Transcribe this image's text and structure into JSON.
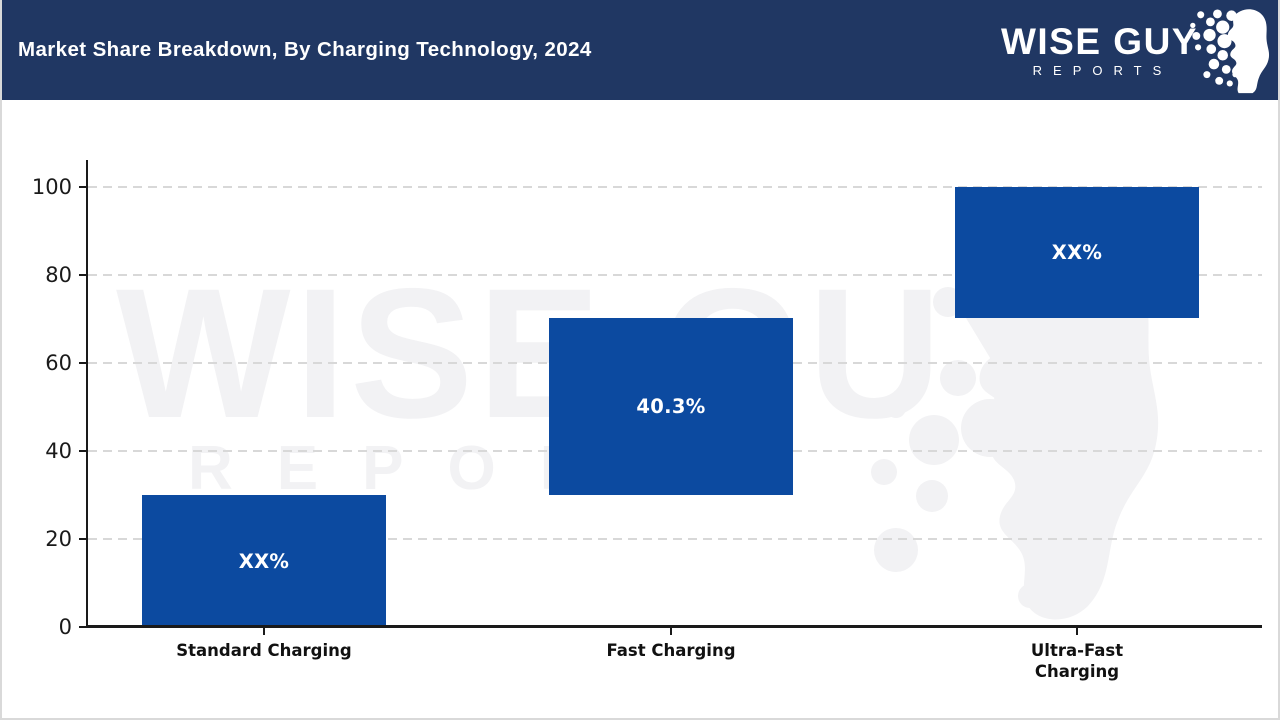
{
  "header": {
    "title": "Market Share Breakdown, By Charging Technology, 2024",
    "logo": {
      "line1": "WISE GUY",
      "line2": "REPORTS"
    }
  },
  "watermark": {
    "line1": "WISE GUY",
    "line2": "REPORTS"
  },
  "chart_data": {
    "type": "bar",
    "subtype": "waterfall",
    "title": "Market Share Breakdown, By Charging Technology, 2024",
    "categories": [
      "Standard Charging",
      "Fast Charging",
      "Ultra-Fast Charging"
    ],
    "tick_labels": [
      "Standard Charging",
      "Fast Charging",
      "Ultra-Fast\nCharging"
    ],
    "segments": [
      {
        "category": "Standard Charging",
        "start": 0,
        "end": 30,
        "label": "XX%"
      },
      {
        "category": "Fast Charging",
        "start": 30,
        "end": 70.3,
        "label": "40.3%"
      },
      {
        "category": "Ultra-Fast Charging",
        "start": 70.3,
        "end": 100,
        "label": "XX%"
      }
    ],
    "yticks": [
      0,
      20,
      40,
      60,
      80,
      100
    ],
    "ylim": [
      0,
      106
    ],
    "xlabel": "",
    "ylabel": "",
    "grid": "horizontal-dashed",
    "legend": "none",
    "colors": {
      "bar": "#0c4aa0",
      "bar_label": "#ffffff",
      "header_bg": "#203763",
      "grid": "#d8d8d8",
      "axis": "#1a1a1a",
      "watermark": "#f2f2f4"
    }
  }
}
